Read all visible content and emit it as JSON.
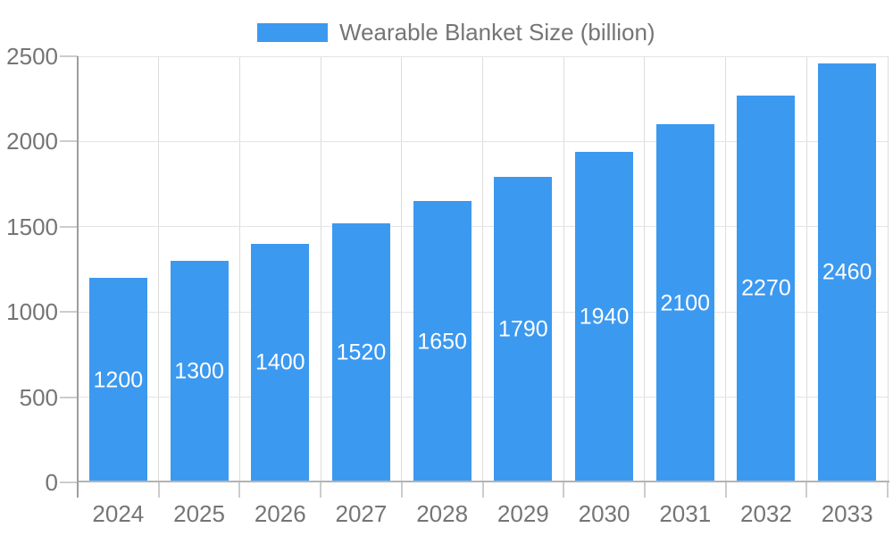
{
  "legend": {
    "label": "Wearable Blanket Size (billion)"
  },
  "colors": {
    "bar": "#3c99f0",
    "axis_text": "#757575",
    "value_text": "#ffffff",
    "hgrid": "#e4e4e4",
    "vgrid": "#dddddd",
    "tick": "#cccccc",
    "y_axis": "#9e9e9e",
    "x_axis": "#b3b3b3",
    "background": "#ffffff"
  },
  "chart_data": {
    "type": "bar",
    "title": "Wearable Blanket Size (billion)",
    "series_name": "Wearable Blanket Size (billion)",
    "categories": [
      "2024",
      "2025",
      "2026",
      "2027",
      "2028",
      "2029",
      "2030",
      "2031",
      "2032",
      "2033"
    ],
    "values": [
      1200,
      1300,
      1400,
      1520,
      1650,
      1790,
      1940,
      2100,
      2270,
      2460
    ],
    "bar_labels": [
      1200,
      1300,
      1400,
      1520,
      1650,
      1790,
      1940,
      2100,
      2270,
      2460
    ],
    "y_tick_labels": [
      "0",
      "500",
      "1000",
      "1500",
      "2000",
      "2500"
    ],
    "ylim": [
      0,
      2500
    ],
    "ytick_interval": 500,
    "xlabel": "",
    "ylabel": "",
    "grid": true,
    "legend_position": "top-center",
    "bar_label_position": "inside-middle"
  }
}
